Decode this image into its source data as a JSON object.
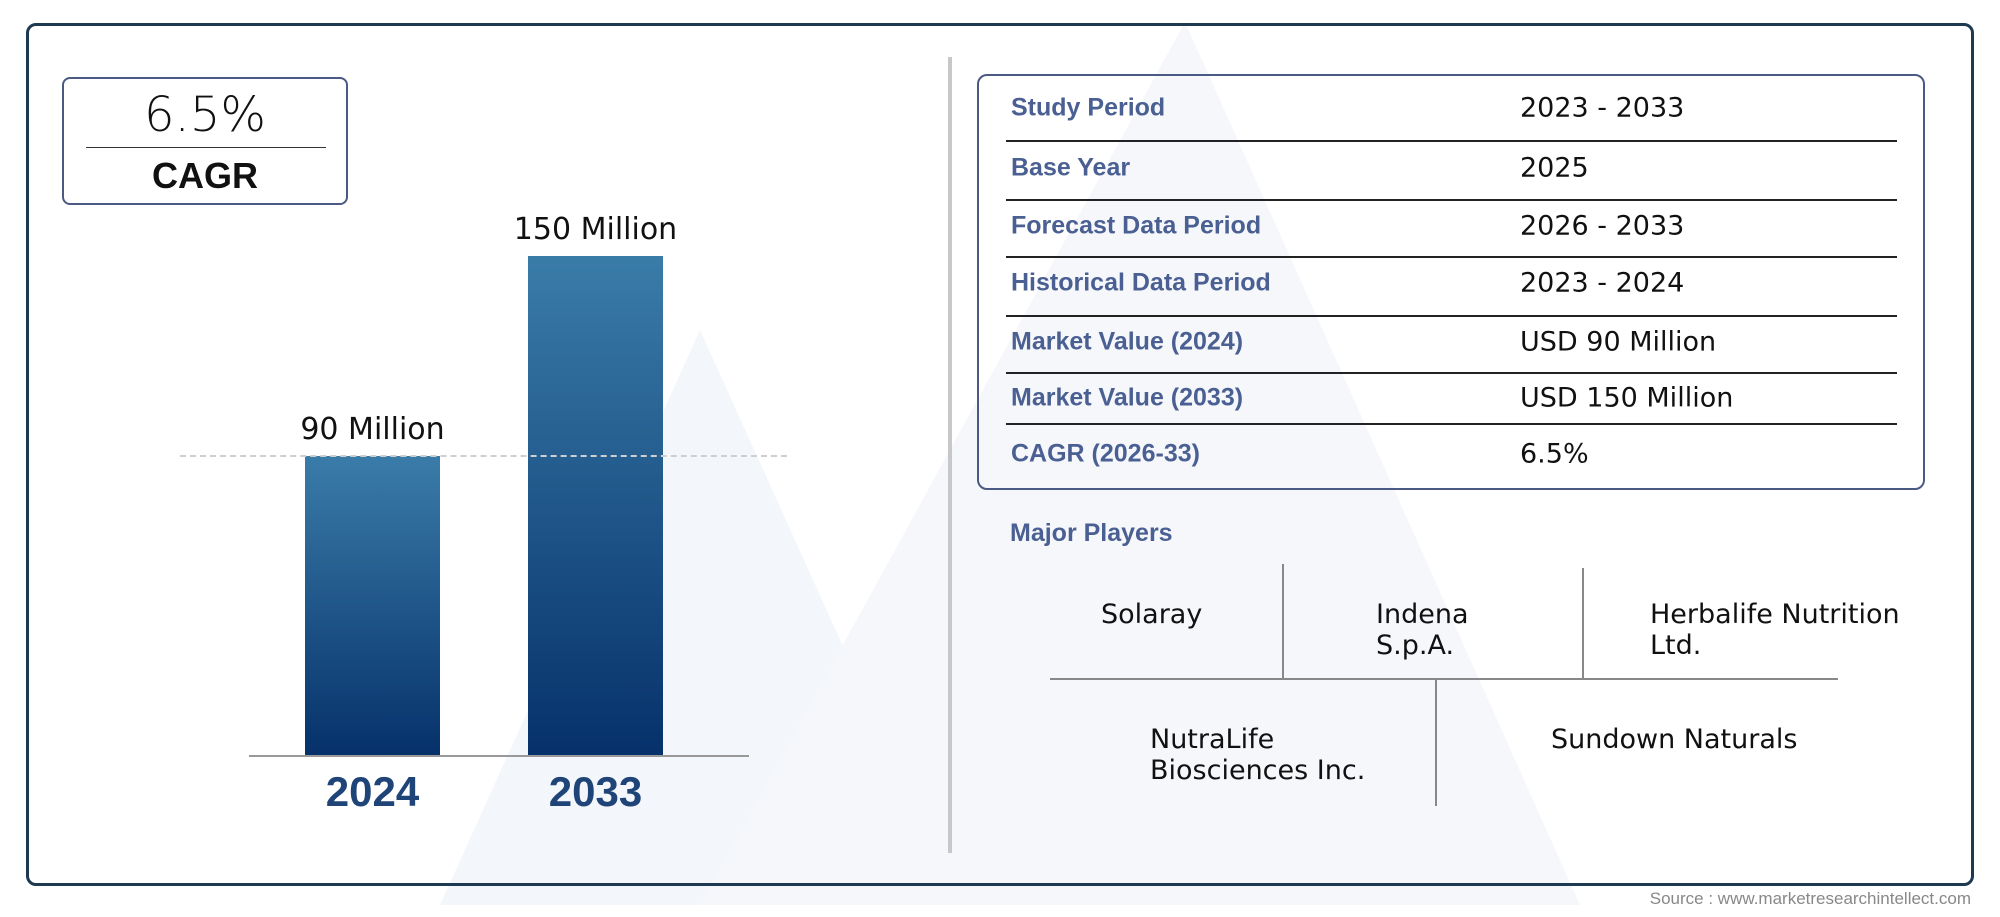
{
  "cagr_box": {
    "value": "6.5%",
    "label": "CAGR"
  },
  "chart_data": {
    "type": "bar",
    "categories": [
      "2024",
      "2033"
    ],
    "values": [
      90,
      150
    ],
    "data_labels": [
      "90 Million",
      "150 Million"
    ],
    "unit": "Million",
    "ylim": [
      0,
      150
    ],
    "grid": false,
    "reference_line": {
      "value": 90,
      "style": "dashed"
    },
    "colors": {
      "bar_top": "#3a7ca9",
      "bar_bottom": "#06316a",
      "year_label": "#1f4478"
    }
  },
  "summary_table": {
    "rows": [
      {
        "label": "Study Period",
        "value": "2023 - 2033"
      },
      {
        "label": "Base Year",
        "value": "2025"
      },
      {
        "label": "Forecast Data Period",
        "value": "2026 - 2033"
      },
      {
        "label": "Historical Data Period",
        "value": "2023 - 2024"
      },
      {
        "label": "Market Value (2024)",
        "value": "USD 90 Million"
      },
      {
        "label": "Market Value (2033)",
        "value": "USD 150 Million"
      },
      {
        "label": "CAGR (2026-33)",
        "value": "6.5%"
      }
    ]
  },
  "major_players": {
    "title": "Major Players",
    "players": [
      "Solaray",
      "Indena S.p.A.",
      "Herbalife Nutrition Ltd.",
      "NutraLife Biosciences Inc.",
      "Sundown Naturals"
    ]
  },
  "source": "Source : www.marketresearchintellect.com",
  "colors": {
    "accent": "#4a5f92",
    "frame": "#1d3a52"
  }
}
